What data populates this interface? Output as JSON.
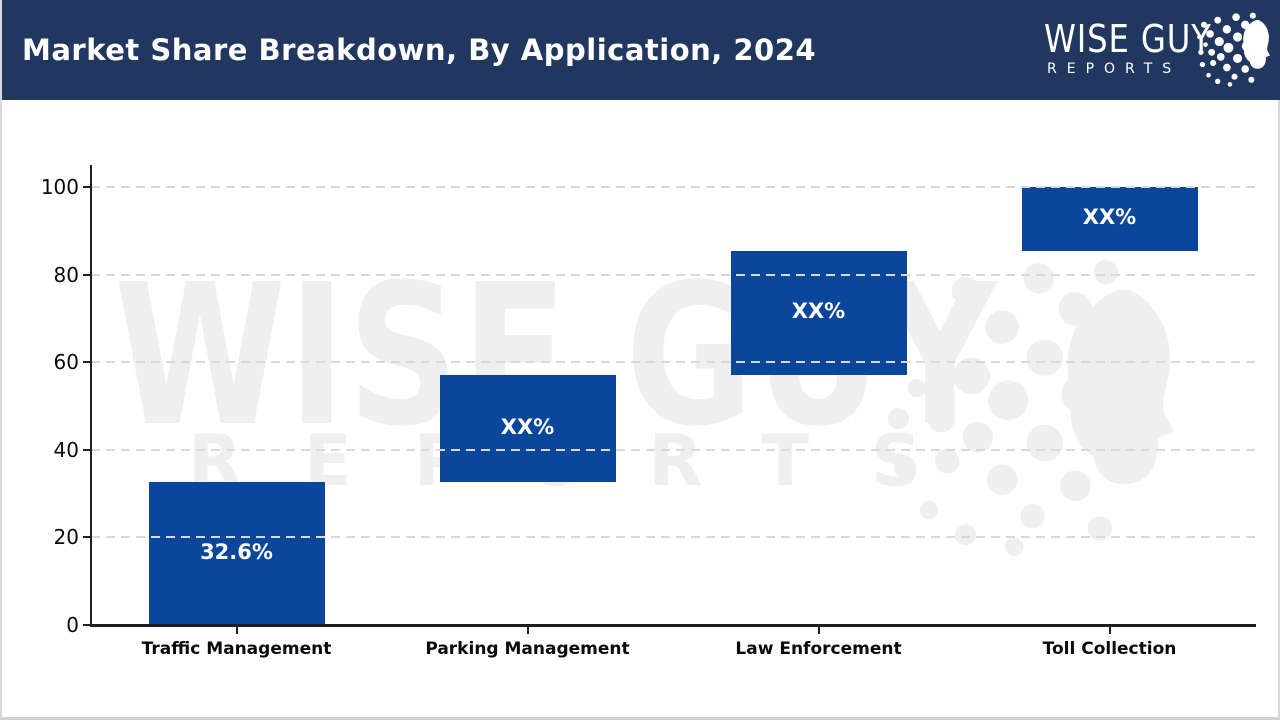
{
  "header": {
    "title": "Market Share Breakdown, By Application, 2024",
    "logo": {
      "line1": "WISE GUY",
      "line2": "REPORTS"
    }
  },
  "watermark": {
    "line1": "WISE GUY",
    "line2": "REPORTS"
  },
  "colors": {
    "header_bg": "#213760",
    "bar": "#0a4699",
    "grid": "#d9d9d9",
    "axis": "#1f1f1f",
    "bar_label_text": "#ffffff",
    "watermark": "#efefef"
  },
  "chart_data": {
    "type": "bar",
    "variant": "floating-waterfall",
    "title": "Market Share Breakdown, By Application, 2024",
    "categories": [
      "Traffic Management",
      "Parking Management",
      "Law Enforcement",
      "Toll Collection"
    ],
    "segments": [
      {
        "category": "Traffic Management",
        "start": 0,
        "end": 32.6,
        "label": "32.6%"
      },
      {
        "category": "Parking Management",
        "start": 32.6,
        "end": 57,
        "label": "XX%"
      },
      {
        "category": "Law Enforcement",
        "start": 57,
        "end": 85.5,
        "label": "XX%"
      },
      {
        "category": "Toll Collection",
        "start": 85.5,
        "end": 100,
        "label": "XX%"
      }
    ],
    "yticks": [
      0,
      20,
      40,
      60,
      80,
      100
    ],
    "ytick_labels": [
      "0",
      "20",
      "40",
      "60",
      "80",
      "100"
    ],
    "ylim": [
      0,
      105
    ],
    "xlabel": "",
    "ylabel": "",
    "grid": "dashed-horizontal",
    "legend": "none",
    "bar_color": "#0a4699"
  }
}
